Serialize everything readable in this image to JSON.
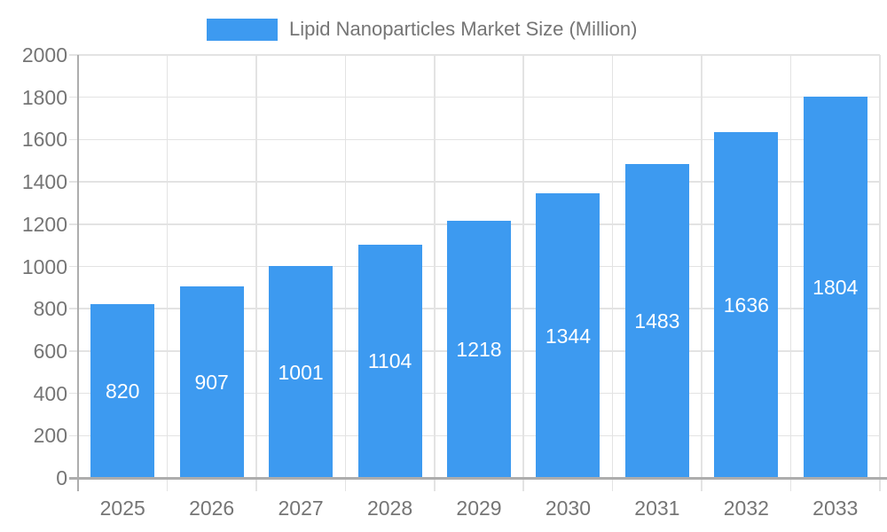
{
  "legend": {
    "label": "Lipid Nanoparticles Market Size (Million)"
  },
  "colors": {
    "bar": "#3D9AF0",
    "grid": "#E3E3E3",
    "axis": "#ADADAD",
    "tick_text": "#757575",
    "bar_label": "#FFFFFF",
    "background": "#FFFFFF"
  },
  "chart_data": {
    "type": "bar",
    "title": "Lipid Nanoparticles Market Size (Million)",
    "series_name": "Lipid Nanoparticles Market Size (Million)",
    "categories": [
      "2025",
      "2026",
      "2027",
      "2028",
      "2029",
      "2030",
      "2031",
      "2032",
      "2033"
    ],
    "values": [
      820,
      907,
      1001,
      1104,
      1218,
      1344,
      1483,
      1636,
      1804
    ],
    "data_labels": true,
    "xlabel": "",
    "ylabel": "",
    "ylim": [
      0,
      2000
    ],
    "ytick_step": 200,
    "yticks": [
      "0",
      "200",
      "400",
      "600",
      "800",
      "1000",
      "1200",
      "1400",
      "1600",
      "1800",
      "2000"
    ],
    "grid": true,
    "legend_position": "top"
  }
}
